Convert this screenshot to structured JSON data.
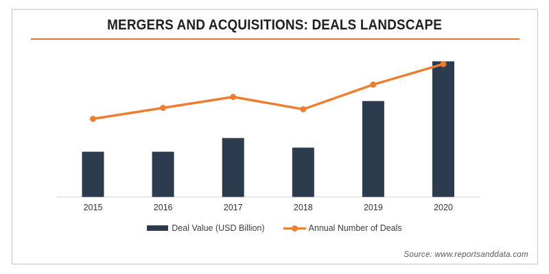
{
  "title": "MERGERS AND ACQUISITIONS: DEALS LANDSCAPE",
  "source_note": "Source: www.reportsanddata.com",
  "colors": {
    "bar_series": "#2c3b4e",
    "line_series": "#ed7d31",
    "title_underline": "#e0772f",
    "frame_border": "#c4c4c4",
    "axis_line": "#d8d8d8",
    "title_text": "#202024",
    "tick_text": "#333333",
    "legend_text": "#3d3d3d",
    "source_text": "#58585a"
  },
  "chart_data": {
    "type": "combo",
    "title": "MERGERS AND ACQUISITIONS: DEALS LANDSCAPE",
    "categories": [
      "2015",
      "2016",
      "2017",
      "2018",
      "2019",
      "2020"
    ],
    "series": [
      {
        "name": "Deal Value (USD Billion)",
        "type": "bar",
        "color": "#2c3b4e",
        "values": [
          33,
          33,
          43,
          36,
          70,
          99
        ]
      },
      {
        "name": "Annual Number of Deals",
        "type": "line",
        "color": "#ed7d31",
        "values": [
          57,
          65,
          73,
          64,
          82,
          97
        ]
      }
    ],
    "xlabel": "",
    "ylabel": "",
    "ylim": [
      0,
      105
    ],
    "value_axis_visible": false,
    "gridlines": false,
    "data_labels": false,
    "legend_position": "bottom",
    "values_note": "no numeric value axis shown in original; series values estimated on a 0-100 relative scale from bar/marker heights"
  }
}
